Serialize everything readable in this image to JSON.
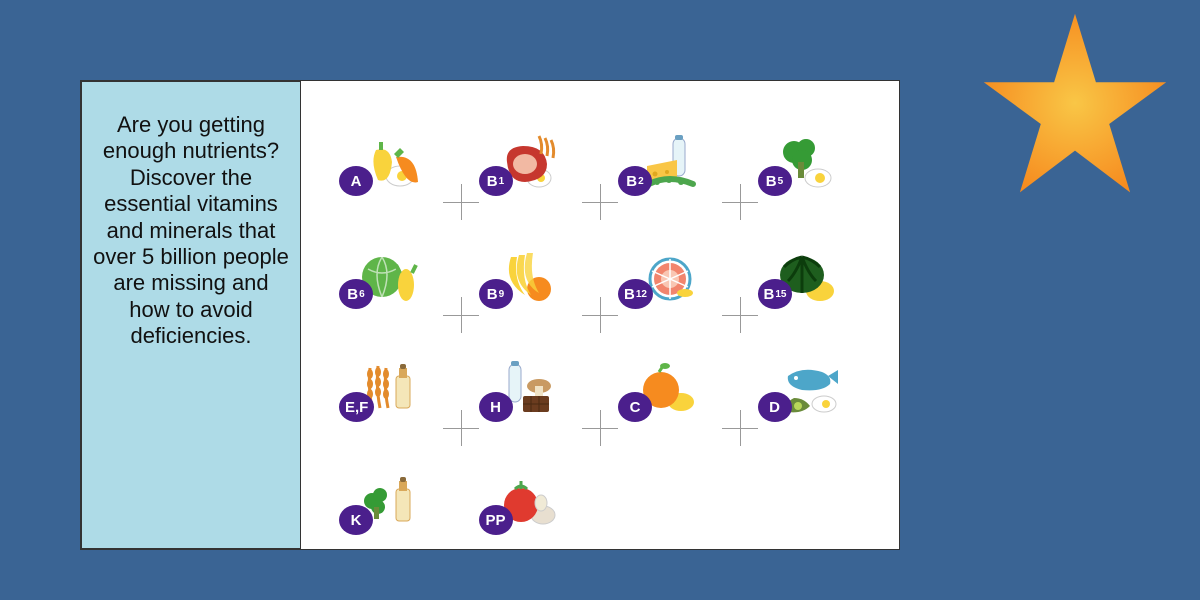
{
  "background_color": "#3a6494",
  "text_panel": {
    "background_color": "#aedbe7",
    "border_color": "#333333",
    "text": "Are you getting enough nutrients? Discover the essential vitamins and minerals that over 5 billion people are missing and how to avoid deficiencies.",
    "font_size": 22,
    "text_color": "#111111"
  },
  "chart": {
    "type": "infographic",
    "background_color": "#ffffff",
    "columns": 4,
    "rows": 4,
    "badge_bg": "#4b1f8c",
    "badge_text_color": "#ffffff",
    "grid_line_color": "#999999",
    "cells": [
      {
        "label": "A",
        "sub": "",
        "food": "pepper-carrot-egg",
        "colors": [
          "#f9d33c",
          "#f68b1f",
          "#ffffff"
        ],
        "cross": true
      },
      {
        "label": "B",
        "sub": "1",
        "food": "meat-wheat-egg",
        "colors": [
          "#c6372e",
          "#e38b2c",
          "#ffffff"
        ],
        "cross": true
      },
      {
        "label": "B",
        "sub": "2",
        "food": "milk-cheese-peas",
        "colors": [
          "#e6f4f8",
          "#f9c646",
          "#4da64d"
        ],
        "cross": true
      },
      {
        "label": "B",
        "sub": "5",
        "food": "broccoli-egg",
        "colors": [
          "#359b35",
          "#ffffff"
        ],
        "cross": false
      },
      {
        "label": "B",
        "sub": "6",
        "food": "cabbage-corn",
        "colors": [
          "#5fb549",
          "#f9d33c"
        ],
        "cross": true
      },
      {
        "label": "B",
        "sub": "9",
        "food": "banana-orange",
        "colors": [
          "#f9d33c",
          "#f68b1f"
        ],
        "cross": true
      },
      {
        "label": "B",
        "sub": "12",
        "food": "salmon",
        "colors": [
          "#f2856d",
          "#4da6c9"
        ],
        "cross": true
      },
      {
        "label": "B",
        "sub": "15",
        "food": "watermelon-lemon",
        "colors": [
          "#1e5e1e",
          "#f9d33c"
        ],
        "cross": false
      },
      {
        "label": "E,F",
        "sub": "",
        "food": "wheat-oil",
        "colors": [
          "#e38b2c",
          "#d9a85a"
        ],
        "cross": true
      },
      {
        "label": "H",
        "sub": "",
        "food": "milk-chocolate-mushroom",
        "colors": [
          "#e6f4f8",
          "#6b3c1f",
          "#c99a62"
        ],
        "cross": true
      },
      {
        "label": "C",
        "sub": "",
        "food": "orange-lemon",
        "colors": [
          "#f68b1f",
          "#f9d33c"
        ],
        "cross": true
      },
      {
        "label": "D",
        "sub": "",
        "food": "fish-avocado-egg",
        "colors": [
          "#4da6c9",
          "#6a8b3a",
          "#ffffff"
        ],
        "cross": false
      },
      {
        "label": "K",
        "sub": "",
        "food": "oil-broccoli",
        "colors": [
          "#d9a85a",
          "#359b35"
        ],
        "cross": false
      },
      {
        "label": "PP",
        "sub": "",
        "food": "tomato-onion",
        "colors": [
          "#e03a2f",
          "#e8dfd0"
        ],
        "cross": false
      }
    ]
  },
  "star": {
    "fill_outer": "#f68b1f",
    "fill_inner": "#f9b233",
    "points": 5,
    "size": 190
  }
}
